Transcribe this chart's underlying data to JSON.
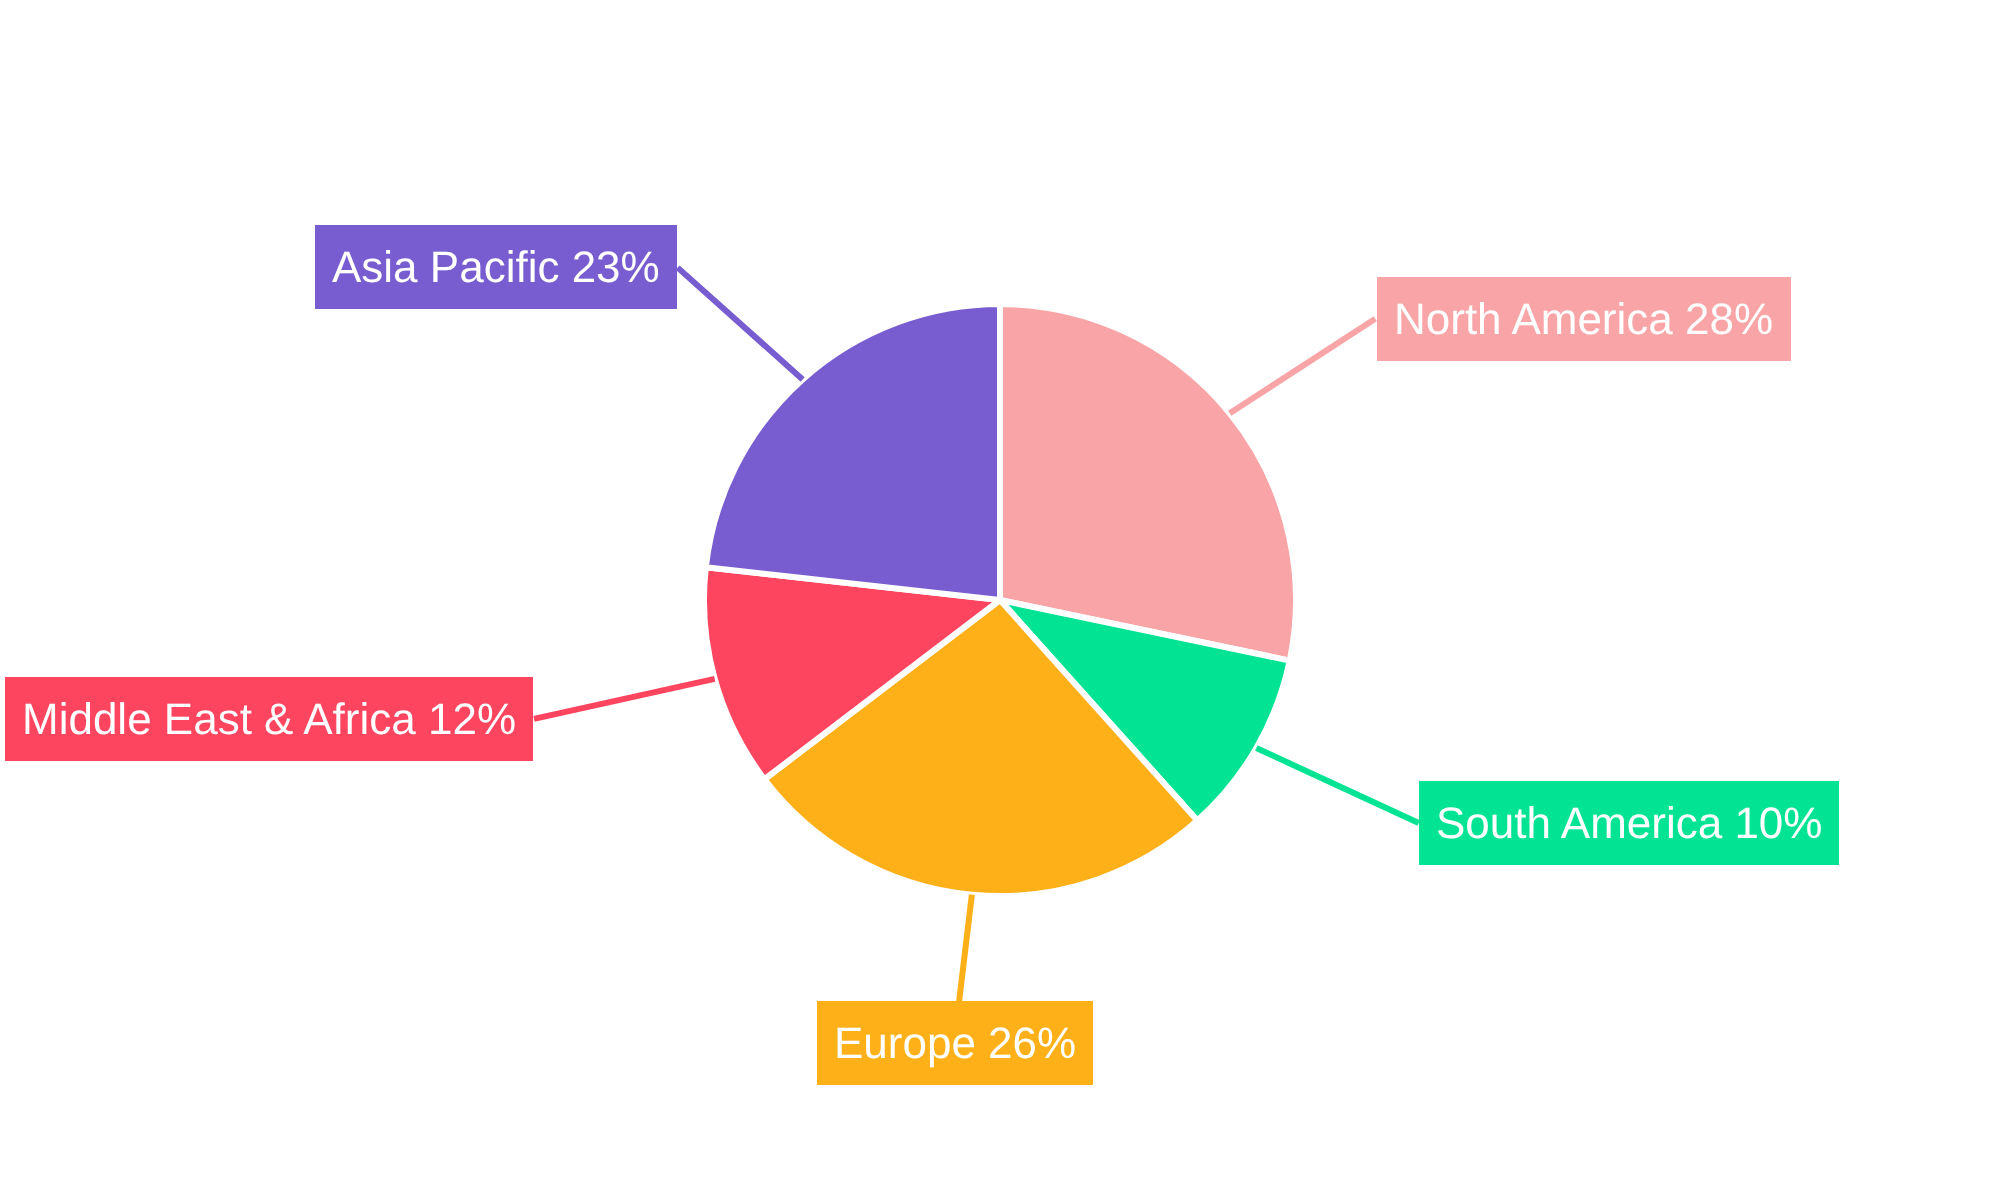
{
  "chart_data": {
    "type": "pie",
    "categories": [
      "North America",
      "South America",
      "Europe",
      "Middle East & Africa",
      "Asia Pacific"
    ],
    "values": [
      28,
      10,
      26,
      12,
      23
    ],
    "colors": [
      "#f9a5a7",
      "#02e394",
      "#feb019",
      "#fe4560",
      "#775dd0"
    ],
    "value_labels": [
      "28%",
      "10%",
      "26%",
      "12%",
      "23%"
    ],
    "legend": false
  }
}
